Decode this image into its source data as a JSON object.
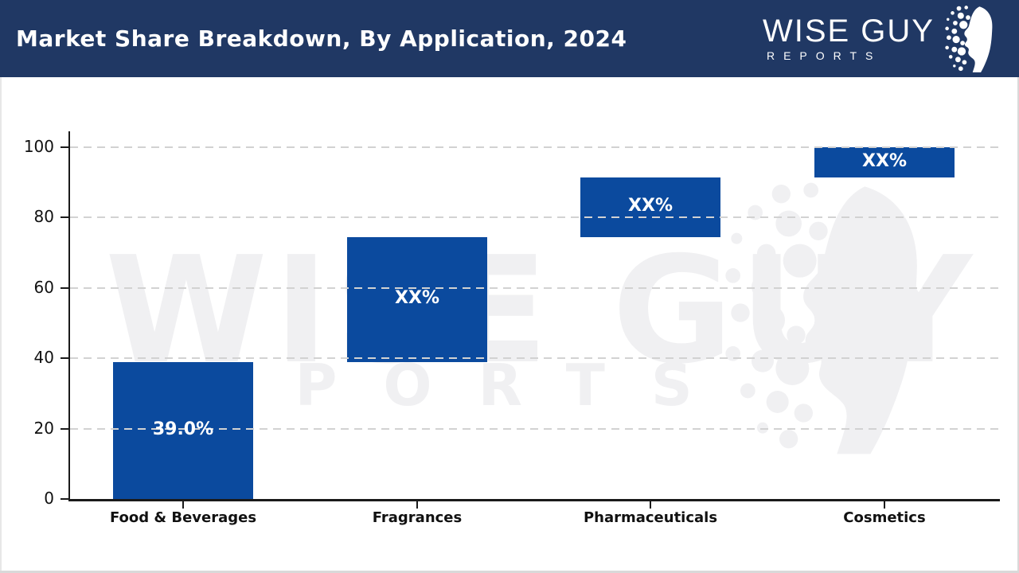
{
  "header": {
    "title": "Market Share Breakdown, By Application, 2024",
    "brand_line1": "WISE GUY",
    "brand_line2": "REPORTS"
  },
  "watermark": {
    "line1": "WISE GUY",
    "line2": "REPORTS"
  },
  "colors": {
    "header_bg": "#203864",
    "bar_fill": "#0b4a9e",
    "bar_label": "#ffffff",
    "grid_line": "#d2d2d2",
    "axis_line": "#1a1a1a",
    "tick_label": "#111111",
    "watermark": "#f0f0f2",
    "frame_line": "#d9d9d9"
  },
  "chart_data": {
    "type": "bar",
    "subtype": "waterfall",
    "title": "Market Share Breakdown, By Application, 2024",
    "categories": [
      "Food & Beverages",
      "Fragrances",
      "Pharmaceuticals",
      "Cosmetics"
    ],
    "series": [
      {
        "name": "Market Share (%)",
        "segments": [
          {
            "category": "Food & Beverages",
            "start": 0,
            "end": 39,
            "label": "39.0%"
          },
          {
            "category": "Fragrances",
            "start": 39,
            "end": 74.5,
            "label": "XX%"
          },
          {
            "category": "Pharmaceuticals",
            "start": 74.5,
            "end": 91.5,
            "label": "XX%"
          },
          {
            "category": "Cosmetics",
            "start": 91.5,
            "end": 100,
            "label": "XX%"
          }
        ]
      }
    ],
    "xlabel": "",
    "ylabel": "",
    "yticks": [
      0,
      20,
      40,
      60,
      80,
      100
    ],
    "ylim": [
      0,
      105
    ],
    "grid": "horizontal-dashed-over-bars",
    "legend": "none"
  }
}
